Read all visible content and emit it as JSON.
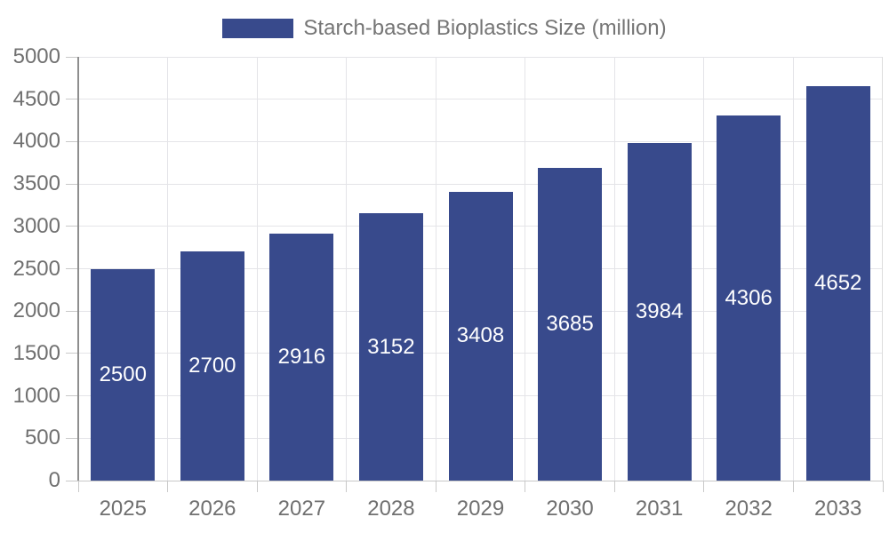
{
  "legend": {
    "label": "Starch-based Bioplastics Size (million)"
  },
  "chart_data": {
    "type": "bar",
    "title": "",
    "xlabel": "",
    "ylabel": "",
    "categories": [
      "2025",
      "2026",
      "2027",
      "2028",
      "2029",
      "2030",
      "2031",
      "2032",
      "2033"
    ],
    "series": [
      {
        "name": "Starch-based Bioplastics Size (million)",
        "values": [
          2500,
          2700,
          2916,
          3152,
          3408,
          3685,
          3984,
          4306,
          4652
        ]
      }
    ],
    "data_labels_shown": true,
    "ylim": [
      0,
      5000
    ],
    "ytick_step": 500,
    "grid": "both",
    "legend_position": "top-center",
    "colors": {
      "bar": "#384a8c",
      "bar_value_text": "#ffffff",
      "axis_text": "#707070",
      "legend_text": "#757575",
      "gridline": "#e4e4e8",
      "axis_line": "#8e8e8e",
      "tick": "#c9c9c9"
    }
  }
}
